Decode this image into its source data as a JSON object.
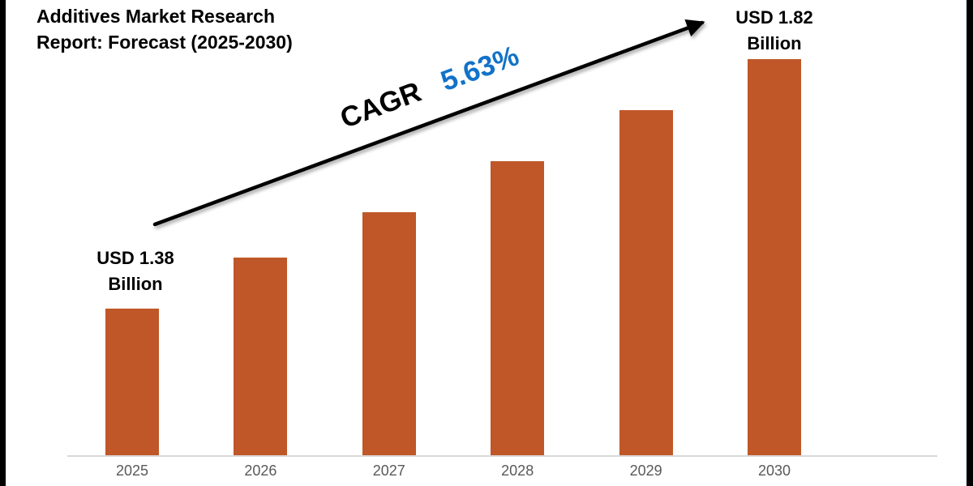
{
  "chart_data": {
    "type": "bar",
    "title": "Additives Market Research Report: Forecast (2025-2030)",
    "categories": [
      "2025",
      "2026",
      "2027",
      "2028",
      "2029",
      "2030"
    ],
    "values": [
      1.38,
      1.47,
      1.55,
      1.64,
      1.73,
      1.82
    ],
    "unit": "USD Billion",
    "labeled_points": {
      "2025": "USD 1.38 Billion",
      "2030": "USD 1.82 Billion"
    },
    "cagr": "5.63%",
    "xlabel": "",
    "ylabel": "",
    "ylim": [
      1.12,
      1.9
    ],
    "grid": false,
    "legend": false
  },
  "title": {
    "line1": "Additives Market Research",
    "line2": "Report: Forecast (2025-2030)"
  },
  "annotations": {
    "start_label": {
      "line1": "USD 1.38",
      "line2": "Billion"
    },
    "end_label": {
      "line1": "USD 1.82",
      "line2": "Billion"
    },
    "cagr_label": {
      "prefix": "CAGR",
      "value": "5.63%"
    }
  },
  "colors": {
    "bar": "#BF5728",
    "cagr_value": "#1272C8",
    "axis_line": "#D9D9D9",
    "tick_label": "#595959",
    "text": "#000000",
    "arrow": "#000000"
  }
}
